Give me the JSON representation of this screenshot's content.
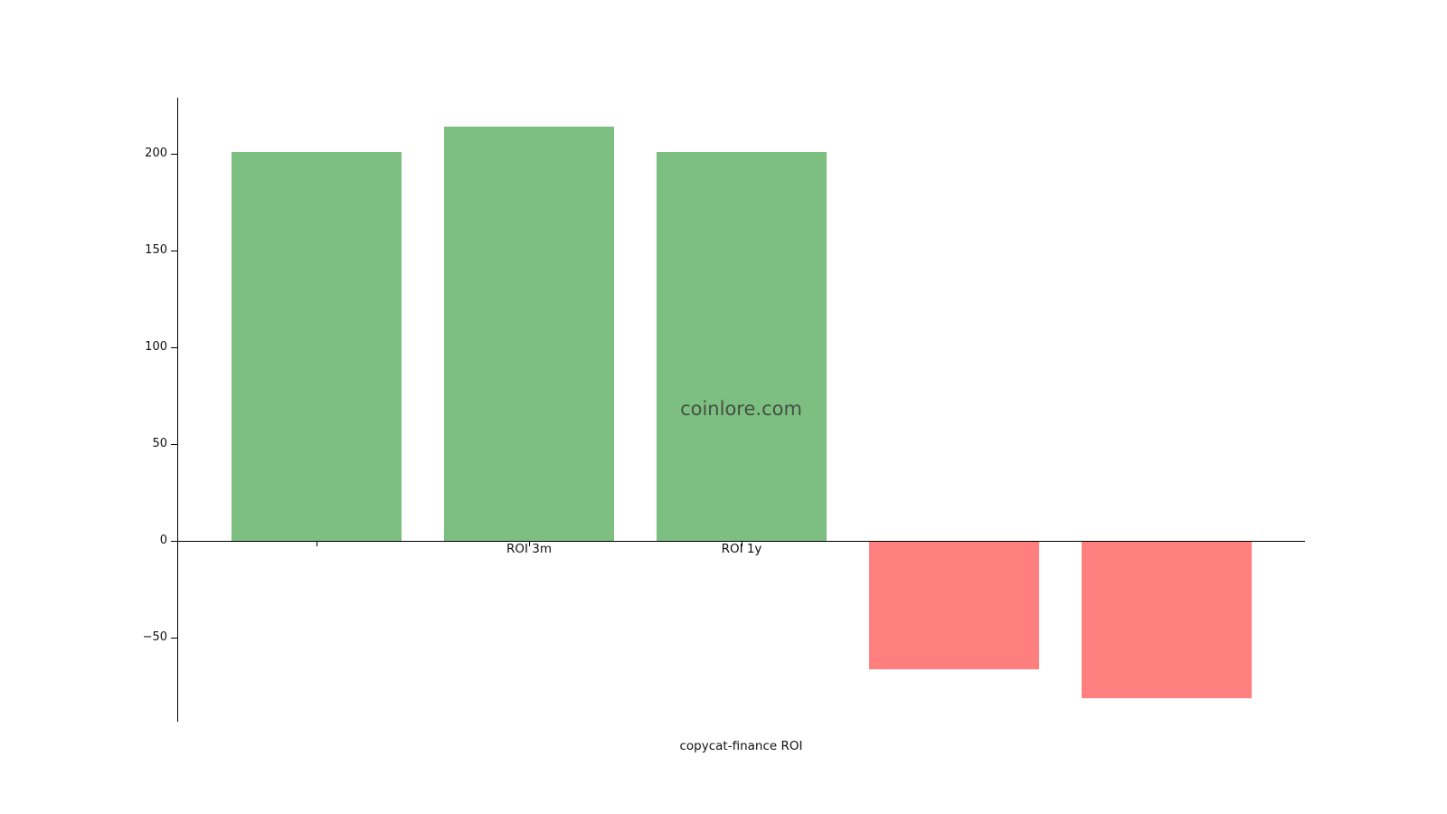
{
  "figure": {
    "background": "#ffffff"
  },
  "chart_data": {
    "type": "bar",
    "title": "copycat-finance ROI",
    "watermark": "coinlore.com",
    "categories": [
      "",
      "ROI 3m",
      "ROI 1y",
      "",
      ""
    ],
    "values": [
      201,
      214,
      201,
      -66,
      -81
    ],
    "y_ticks": [
      {
        "value": 200,
        "label": "200"
      },
      {
        "value": 150,
        "label": "150"
      },
      {
        "value": 100,
        "label": "100"
      },
      {
        "value": 50,
        "label": "50"
      },
      {
        "value": 0,
        "label": "0"
      },
      {
        "value": -50,
        "label": "−50"
      }
    ],
    "ylim": [
      -94,
      229
    ],
    "xlabel": "copycat-finance ROI",
    "ylabel": "",
    "grid": false,
    "legend": "none",
    "colors": {
      "positive": "#7dbf80",
      "negative": "#ff7f7f",
      "axis": "#000000",
      "tick_label": "#111111",
      "watermark": "#3c3c3c"
    }
  }
}
